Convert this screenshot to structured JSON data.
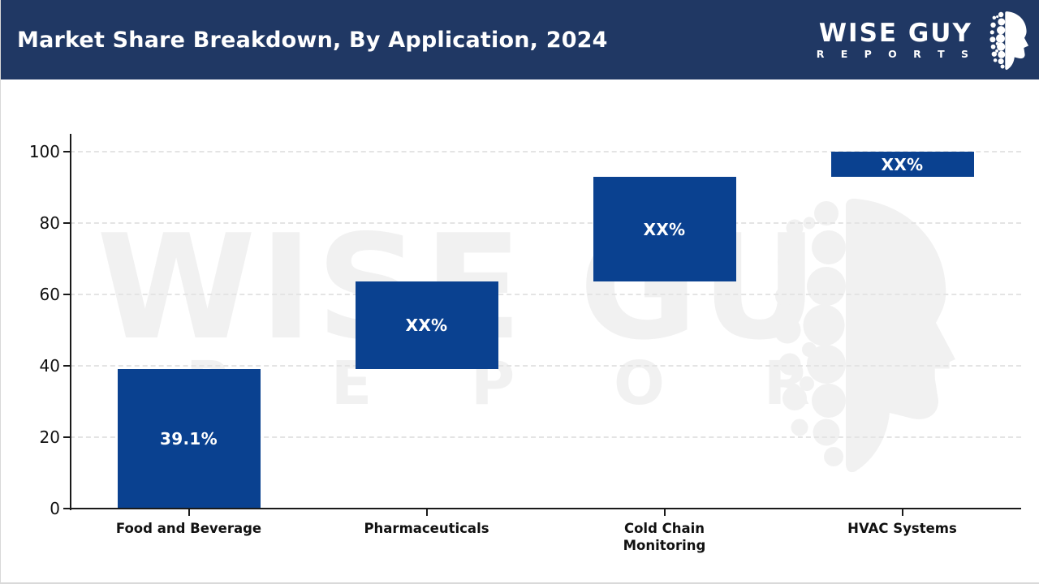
{
  "header": {
    "title": "Market Share Breakdown, By Application, 2024",
    "logo": {
      "line1": "WISE GUY",
      "line2": "R E P O R T S"
    }
  },
  "watermark": {
    "line1": "WISE GU",
    "line2": "R E P O R T S"
  },
  "colors": {
    "header_bg": "#203864",
    "title_text": "#ffffff",
    "bar": "#0a4190",
    "bar_label": "#ffffff",
    "grid": "#e4e4e4",
    "axis": "#1a1a1a",
    "watermark": "#f1f1f1"
  },
  "chart_data": {
    "type": "bar",
    "subtype": "waterfall-floating-bars",
    "title": "Market Share Breakdown, By Application, 2024",
    "categories": [
      "Food and Beverage",
      "Pharmaceuticals",
      "Cold Chain Monitoring",
      "HVAC Systems"
    ],
    "segments": [
      {
        "category": "Food and Beverage",
        "start": 0,
        "end": 39.1,
        "value": 39.1,
        "label": "39.1%"
      },
      {
        "category": "Pharmaceuticals",
        "start": 39.1,
        "end": 63.6,
        "value": 24.5,
        "label": "XX%"
      },
      {
        "category": "Cold Chain Monitoring",
        "start": 63.6,
        "end": 92.9,
        "value": 29.3,
        "label": "XX%"
      },
      {
        "category": "HVAC Systems",
        "start": 92.9,
        "end": 100,
        "value": 7.1,
        "label": "XX%"
      }
    ],
    "xlabel": "",
    "ylabel": "",
    "ylim": [
      0,
      100
    ],
    "yticks": [
      0,
      20,
      40,
      60,
      80,
      100
    ],
    "grid": "horizontal-dashed",
    "legend": "none"
  }
}
